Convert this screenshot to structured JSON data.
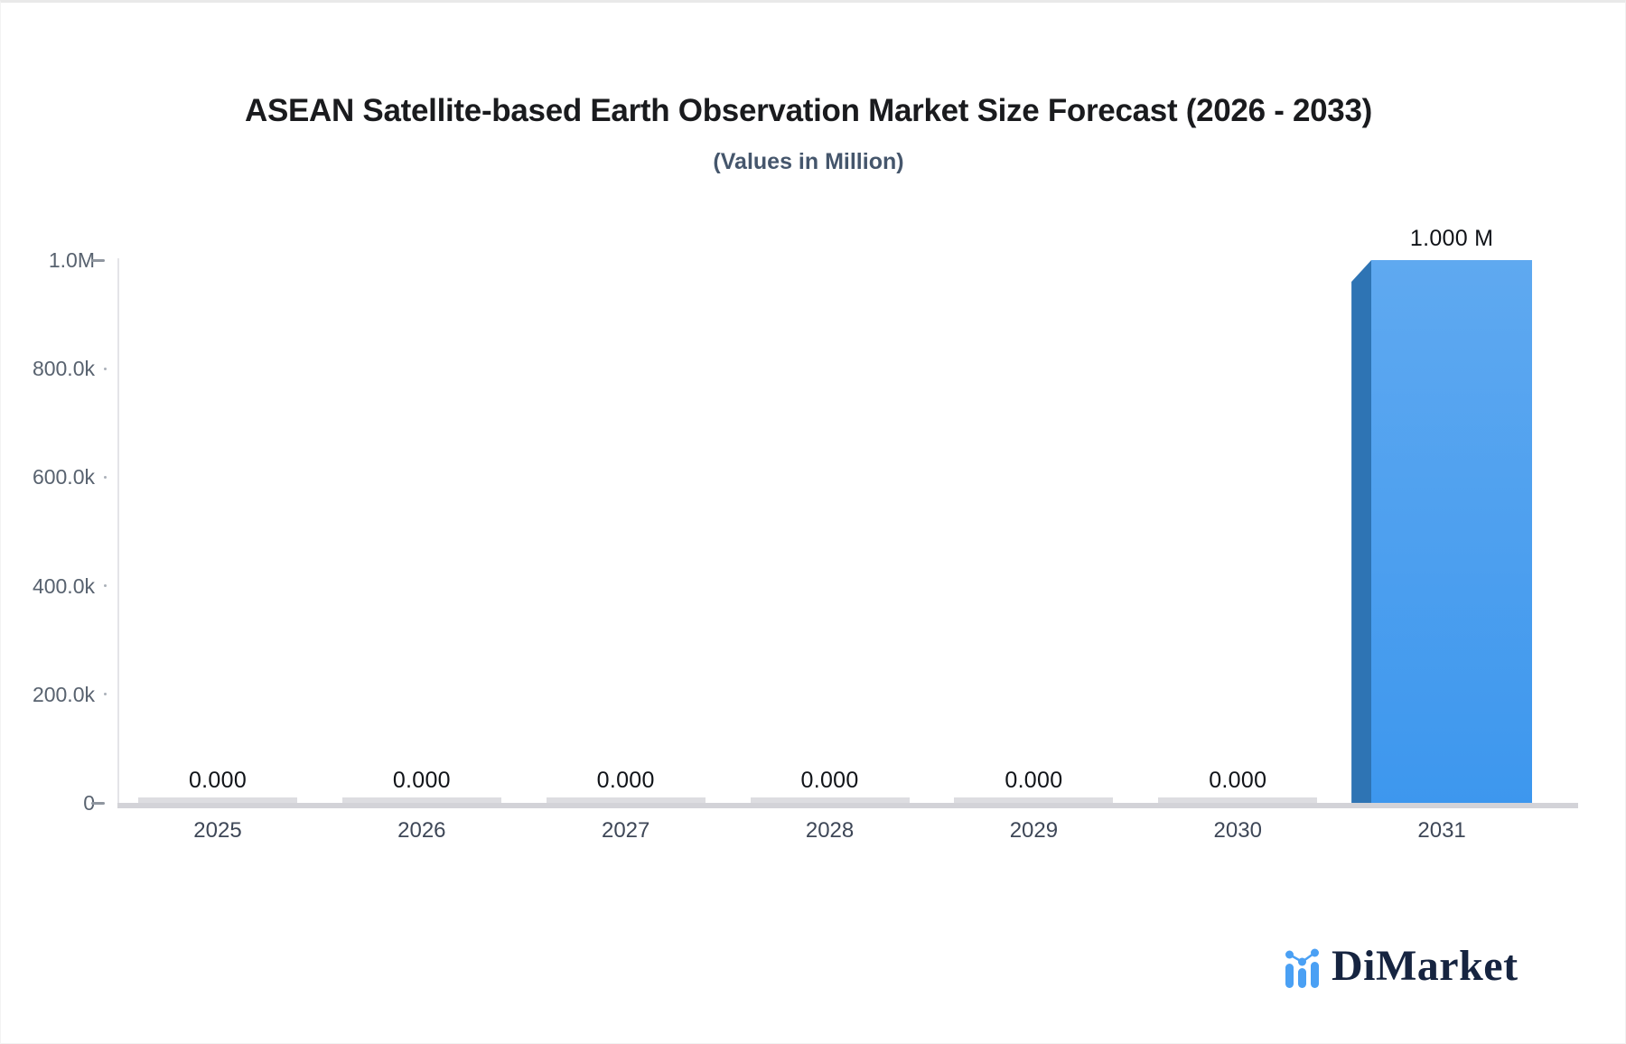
{
  "header": {
    "title": "ASEAN Satellite-based Earth Observation Market Size Forecast (2026 - 2033)",
    "subtitle": "(Values in Million)"
  },
  "chart_data": {
    "type": "bar",
    "title": "ASEAN Satellite-based Earth Observation Market Size Forecast (2026 - 2033)",
    "subtitle": "(Values in Million)",
    "unit": "Million",
    "categories": [
      "2025",
      "2026",
      "2027",
      "2028",
      "2029",
      "2030",
      "2031"
    ],
    "values": [
      0,
      0,
      0,
      0,
      0,
      0,
      1000000
    ],
    "value_labels": [
      "0.000",
      "0.000",
      "0.000",
      "0.000",
      "0.000",
      "0.000",
      "1.000 M"
    ],
    "ylim": [
      0,
      1000000
    ],
    "yticks": [
      {
        "label": "0",
        "value": 0
      },
      {
        "label": "200.0k",
        "value": 200000
      },
      {
        "label": "400.0k",
        "value": 400000
      },
      {
        "label": "600.0k",
        "value": 600000
      },
      {
        "label": "800.0k",
        "value": 800000
      },
      {
        "label": "1.0M",
        "value": 1000000
      }
    ],
    "grid": false,
    "legend": false,
    "colors": {
      "bar_face_top": "#5fa9f0",
      "bar_face_bottom": "#3d97ee",
      "bar_side": "#2e74b4",
      "zero_bar": "#dddde1",
      "axis_line": "#d3d3d8",
      "tick_text": "#58626f",
      "x_label_text": "#3e4757",
      "value_text": "#101318"
    }
  },
  "logo": {
    "name": "DiMarket",
    "icon": "bar-line-chart-icon",
    "icon_color": "#4aa0f4",
    "text_color": "#162440"
  }
}
